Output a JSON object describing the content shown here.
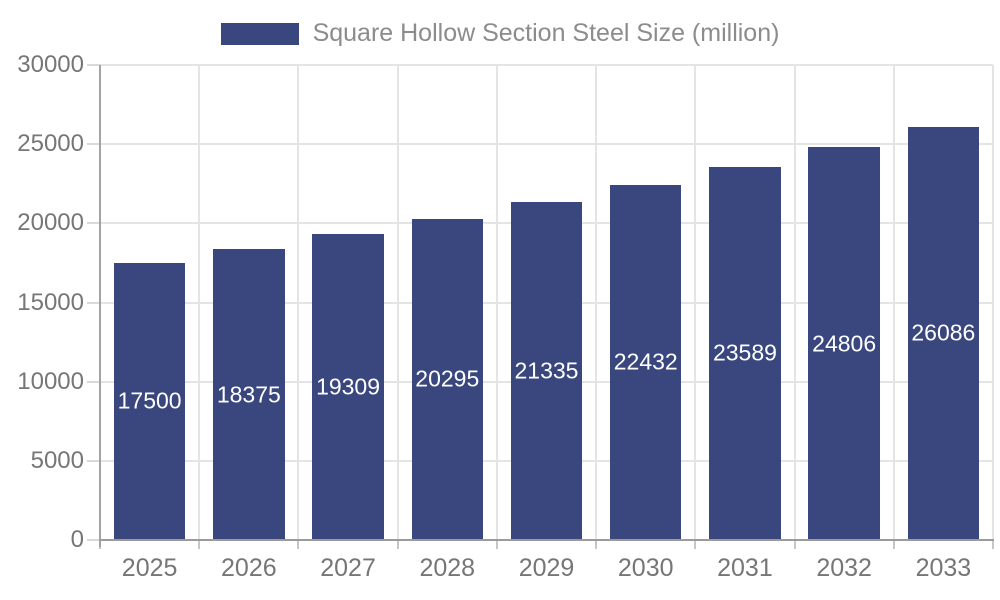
{
  "chart_data": {
    "type": "bar",
    "legend": "Square Hollow Section Steel Size (million)",
    "categories": [
      "2025",
      "2026",
      "2027",
      "2028",
      "2029",
      "2030",
      "2031",
      "2032",
      "2033"
    ],
    "values": [
      17500,
      18375,
      19309,
      20295,
      21335,
      22432,
      23589,
      24806,
      26086
    ],
    "ylim": [
      0,
      30000
    ],
    "yticks": [
      0,
      5000,
      10000,
      15000,
      20000,
      25000,
      30000
    ],
    "grid": true,
    "legend_position": "top",
    "bar_color": "#3a477f",
    "value_label_color": "#ffffff",
    "axis_text_color": "#767676",
    "legend_text_color": "#8c8c8c",
    "gridline_color": "#e4e4e4",
    "axis_line_color": "#a3a3a3",
    "tick_color": "#d9d9d9"
  }
}
